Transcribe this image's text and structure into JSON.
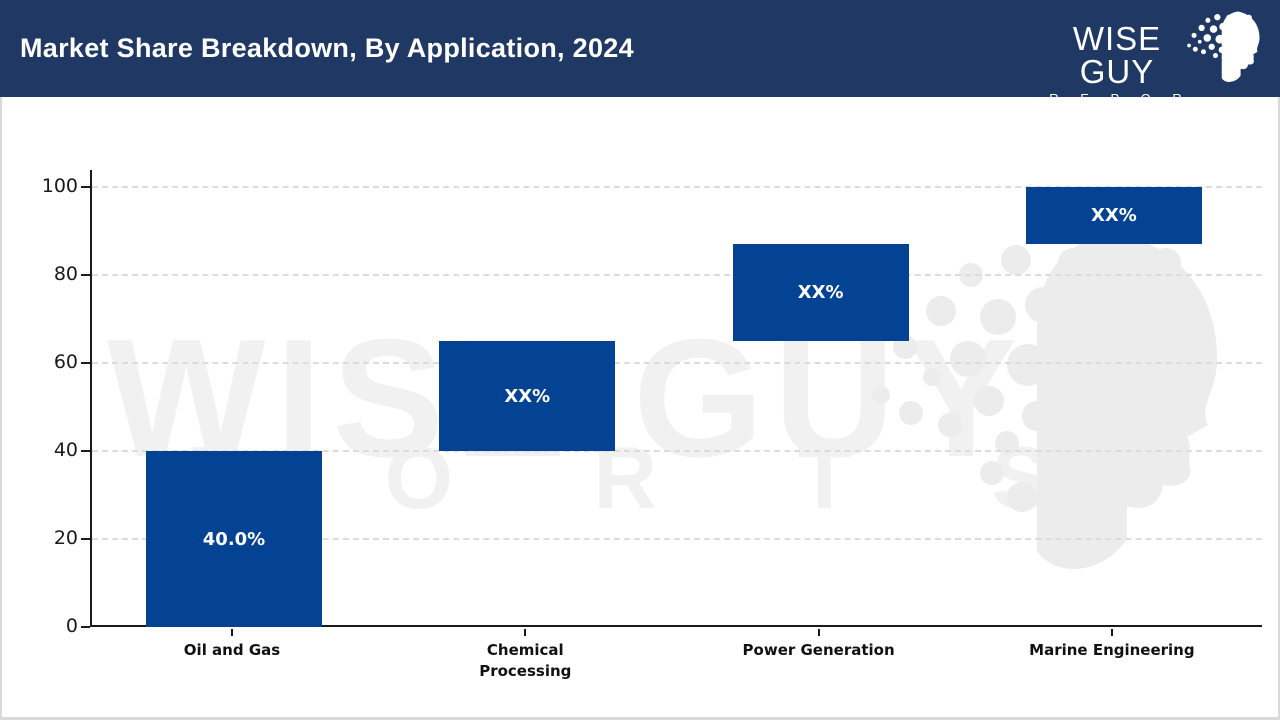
{
  "header": {
    "title": "Market Share Breakdown, By Application, 2024",
    "logo": {
      "line1": "WISE GUY",
      "line2": "R E P O R T S"
    }
  },
  "icons": {
    "logo_face": "wiseguy-head-dots-logo",
    "watermark_face": "wiseguy-head-dots-watermark"
  },
  "watermark": {
    "line1": "WISE GUY",
    "line2": "P O R T S"
  },
  "colors": {
    "header_bg": "#1f3864",
    "bar": "#044293",
    "gridline": "#dcdcdc",
    "axis": "#1a1a1a",
    "bar_label_text": "#ffffff",
    "watermark": "#f1f1f1"
  },
  "chart_data": {
    "type": "bar",
    "subtype": "waterfall",
    "title": "Market Share Breakdown, By Application, 2024",
    "categories": [
      "Oil and Gas",
      "Chemical\nProcessing",
      "Power Generation",
      "Marine Engineering"
    ],
    "segments": [
      {
        "category": "Oil and Gas",
        "start": 0,
        "end": 40,
        "value_pct": 40,
        "label": "40.0%"
      },
      {
        "category": "Chemical Processing",
        "start": 40,
        "end": 65,
        "value_pct": 25,
        "label": "XX%"
      },
      {
        "category": "Power Generation",
        "start": 65,
        "end": 87,
        "value_pct": 22,
        "label": "XX%"
      },
      {
        "category": "Marine Engineering",
        "start": 87,
        "end": 100,
        "value_pct": 13,
        "label": "XX%"
      }
    ],
    "yticks": [
      0,
      20,
      40,
      60,
      80,
      100
    ],
    "ylim": [
      0,
      104
    ],
    "xlabel": "",
    "ylabel": "",
    "grid": "horizontal-dashed",
    "legend": "none"
  }
}
